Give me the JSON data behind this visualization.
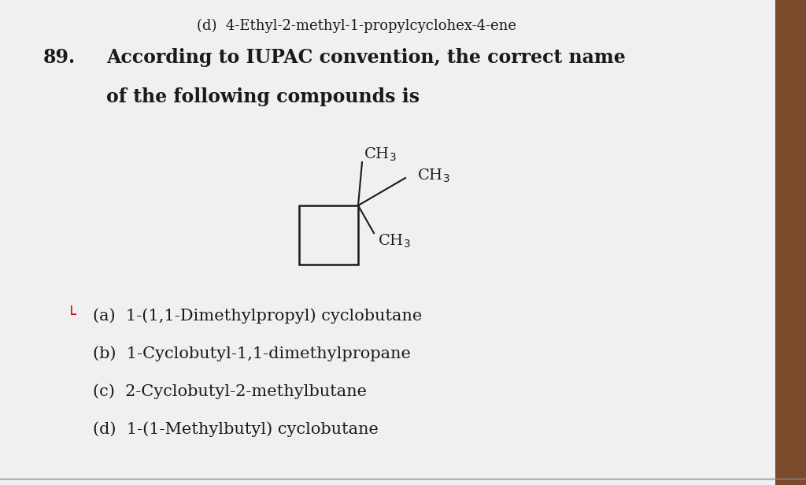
{
  "background_color": "#e8e8e8",
  "page_color": "#f0f0f0",
  "title_d": "(d)  4-Ethyl-2-methyl-1-propylcyclohex-4-ene",
  "question_num": "89.",
  "question_text": "According to IUPAC convention, the correct name",
  "question_text2": "of the following compounds is",
  "options": [
    "(a)  1-(1,1-Dimethylpropyl) cyclobutane",
    "(b)  1-Cyclobutyl-1,1-dimethylpropane",
    "(c)  2-Cyclobutyl-2-methylbutane",
    "(d)  1-(1-Methylbutyl) cyclobutane"
  ],
  "ch3_labels": [
    "CH₃",
    "CH₃",
    "CH₃"
  ],
  "text_color": "#1a1a1a",
  "font_size_title": 13,
  "font_size_question": 15,
  "font_size_options": 14,
  "font_size_chem": 13
}
